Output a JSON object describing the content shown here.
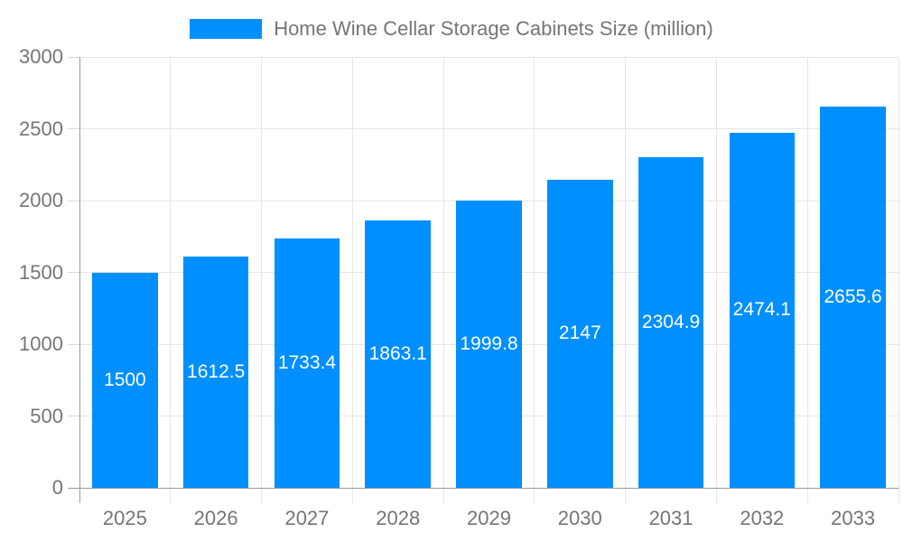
{
  "legend": {
    "label": "Home Wine Cellar Storage Cabinets Size (million)"
  },
  "chart_data": {
    "type": "bar",
    "title": "Home Wine Cellar Storage Cabinets Size (million)",
    "categories": [
      "2025",
      "2026",
      "2027",
      "2028",
      "2029",
      "2030",
      "2031",
      "2032",
      "2033"
    ],
    "values": [
      1500,
      1612.5,
      1733.4,
      1863.1,
      1999.8,
      2147,
      2304.9,
      2474.1,
      2655.6
    ],
    "value_labels": [
      "1500",
      "1612.5",
      "1733.4",
      "1863.1",
      "1999.8",
      "2147",
      "2304.9",
      "2474.1",
      "2655.6"
    ],
    "xlabel": "",
    "ylabel": "",
    "ylim": [
      0,
      3000
    ],
    "yticks": [
      0,
      500,
      1000,
      1500,
      2000,
      2500,
      3000
    ],
    "grid": true,
    "legend_position": "top",
    "colors": {
      "bar": "#008FFF",
      "value_label": "#FFFFFF",
      "axis_text": "#757575",
      "grid_line": "#E6E6E6",
      "axis_line": "#9A9A9A"
    }
  }
}
